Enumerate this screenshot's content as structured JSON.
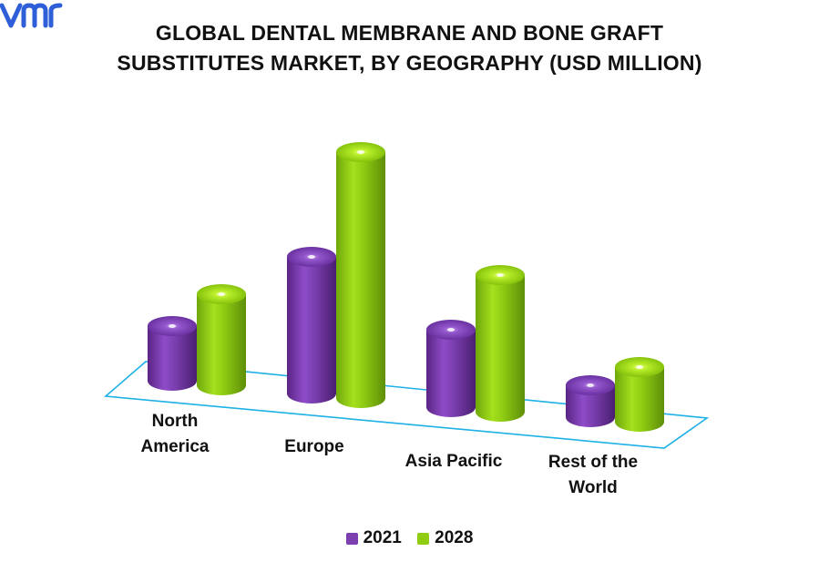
{
  "chart_data": {
    "type": "bar",
    "title_lines": [
      "GLOBAL DENTAL MEMBRANE AND BONE GRAFT",
      "SUBSTITUTES MARKET, BY GEOGRAPHY (USD MILLION)"
    ],
    "categories": [
      "North America",
      "Europe",
      "Asia Pacific",
      "Rest of the World"
    ],
    "category_label_lines": [
      [
        "North",
        "America"
      ],
      [
        "Europe"
      ],
      [
        "Asia Pacific"
      ],
      [
        "Rest of the",
        "World"
      ]
    ],
    "series": [
      {
        "name": "2021",
        "values": [
          60,
          150,
          85,
          35
        ],
        "color": "#7B3FB0"
      },
      {
        "name": "2028",
        "values": [
          100,
          270,
          150,
          60
        ],
        "color": "#8FCC12"
      }
    ],
    "legend_position": "bottom",
    "grid": false,
    "style": "3d-cylinder"
  },
  "logo": {
    "text": "vmr",
    "color": "#2F5FD8"
  }
}
